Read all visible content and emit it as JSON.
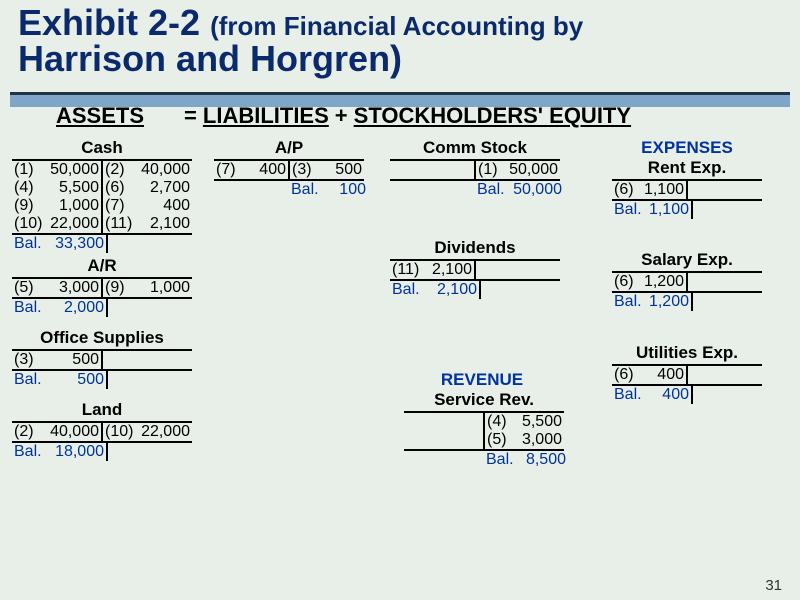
{
  "header": {
    "title_main": "Exhibit 2-2",
    "title_sub": "(from Financial Accounting by",
    "title_line2": "Harrison and Horgren)"
  },
  "equation": {
    "assets": "ASSETS",
    "eq": "=",
    "liab": "LIABILITIES",
    "plus": "+",
    "se": "STOCKHOLDERS' EQUITY"
  },
  "labels": {
    "expenses": "EXPENSES",
    "revenue": "REVENUE"
  },
  "accounts": {
    "cash": {
      "title": "Cash",
      "debits": [
        [
          "(1)",
          "50,000"
        ],
        [
          "(4)",
          "5,500"
        ],
        [
          "(9)",
          "1,000"
        ],
        [
          "(10)",
          "22,000"
        ]
      ],
      "credits": [
        [
          "(2)",
          "40,000"
        ],
        [
          "(6)",
          "2,700"
        ],
        [
          "(7)",
          "400"
        ],
        [
          "(11)",
          "2,100"
        ]
      ],
      "balance_side": "debit",
      "balance": [
        "Bal.",
        "33,300"
      ]
    },
    "ar": {
      "title": "A/R",
      "debits": [
        [
          "(5)",
          "3,000"
        ]
      ],
      "credits": [
        [
          "(9)",
          "1,000"
        ]
      ],
      "balance_side": "debit",
      "balance": [
        "Bal.",
        "2,000"
      ]
    },
    "supplies": {
      "title": "Office Supplies",
      "debits": [
        [
          "(3)",
          "500"
        ]
      ],
      "credits": [],
      "balance_side": "debit",
      "balance": [
        "Bal.",
        "500"
      ]
    },
    "land": {
      "title": "Land",
      "debits": [
        [
          "(2)",
          "40,000"
        ]
      ],
      "credits": [
        [
          "(10)",
          "22,000"
        ]
      ],
      "balance_side": "debit",
      "balance": [
        "Bal.",
        "18,000"
      ]
    },
    "ap": {
      "title": "A/P",
      "debits": [
        [
          "(7)",
          "400"
        ]
      ],
      "credits": [
        [
          "(3)",
          "500"
        ]
      ],
      "balance_side": "credit",
      "balance": [
        "Bal.",
        "100"
      ]
    },
    "commstock": {
      "title": "Comm Stock",
      "debits": [],
      "credits": [
        [
          "(1)",
          "50,000"
        ]
      ],
      "balance_side": "credit",
      "balance": [
        "Bal.",
        "50,000"
      ]
    },
    "dividends": {
      "title": "Dividends",
      "debits": [
        [
          "(11)",
          "2,100"
        ]
      ],
      "credits": [],
      "balance_side": "debit",
      "balance": [
        "Bal.",
        "2,100"
      ]
    },
    "servicerev": {
      "title": "Service Rev.",
      "debits": [],
      "credits": [
        [
          "(4)",
          "5,500"
        ],
        [
          "(5)",
          "3,000"
        ]
      ],
      "balance_side": "credit",
      "balance": [
        "Bal.",
        "8,500"
      ]
    },
    "rent": {
      "title": "Rent Exp.",
      "debits": [
        [
          "(6)",
          "1,100"
        ]
      ],
      "credits": [],
      "balance_side": "debit",
      "balance": [
        "Bal.",
        "1,100"
      ]
    },
    "salary": {
      "title": "Salary Exp.",
      "debits": [
        [
          "(6)",
          "1,200"
        ]
      ],
      "credits": [],
      "balance_side": "debit",
      "balance": [
        "Bal.",
        "1,200"
      ]
    },
    "util": {
      "title": "Utilities Exp.",
      "debits": [
        [
          "(6)",
          "400"
        ]
      ],
      "credits": [],
      "balance_side": "debit",
      "balance": [
        "Bal.",
        "400"
      ]
    }
  },
  "page_number": "31",
  "colors": {
    "bg": "#e8efe8",
    "heading": "#0a2a6b",
    "accent": "#003399"
  }
}
